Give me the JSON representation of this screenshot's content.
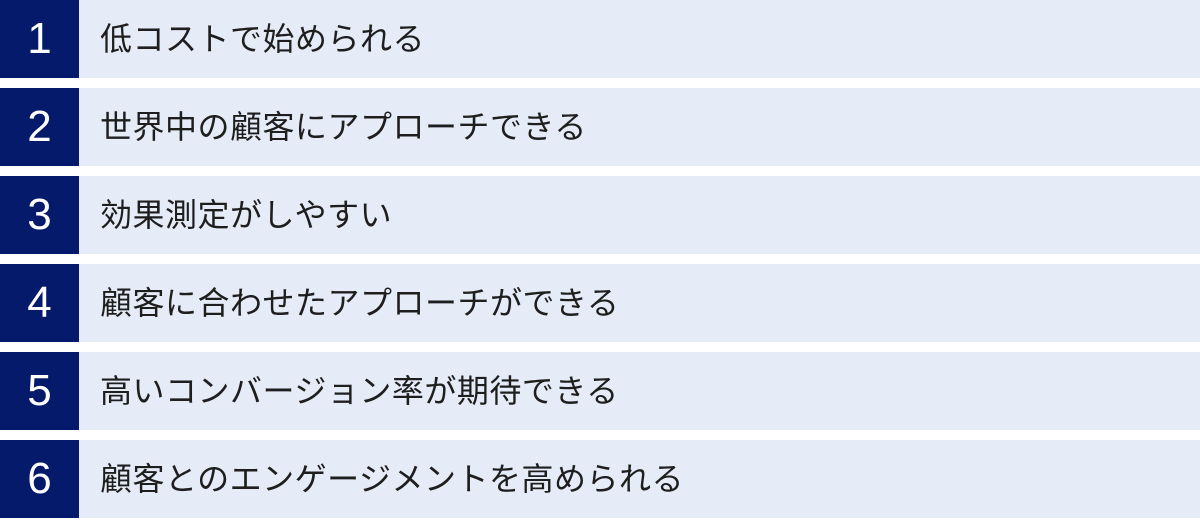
{
  "list": {
    "items": [
      {
        "number": "1",
        "text": "低コストで始められる"
      },
      {
        "number": "2",
        "text": "世界中の顧客にアプローチできる"
      },
      {
        "number": "3",
        "text": "効果測定がしやすい"
      },
      {
        "number": "4",
        "text": "顧客に合わせたアプローチができる"
      },
      {
        "number": "5",
        "text": "高いコンバージョン率が期待できる"
      },
      {
        "number": "6",
        "text": "顧客とのエンゲージメントを高められる"
      }
    ]
  },
  "colors": {
    "number_box": "#061A6B",
    "row_background": "#E6EBF8",
    "text": "#1E1E1E",
    "number_text": "#FFFFFF",
    "page_background": "#FFFFFF"
  }
}
